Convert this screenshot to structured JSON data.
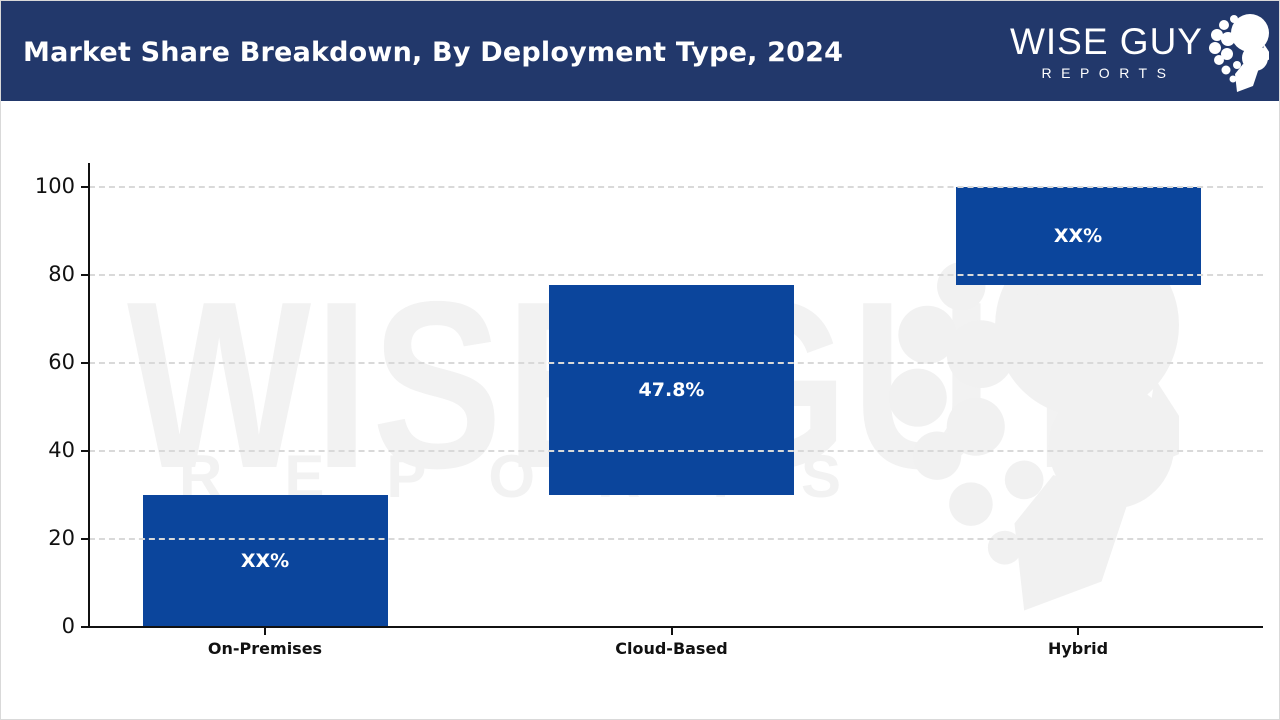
{
  "header": {
    "title": "Market Share Breakdown, By Deployment Type, 2024",
    "background": "#22386B",
    "logo": {
      "line1": "WISE GUY",
      "line2": "REPORTS",
      "icon": "head-profile-dots-icon"
    }
  },
  "watermark": {
    "line1": "WISE GUY",
    "line2": "REPORTS"
  },
  "chart_data": {
    "type": "bar",
    "subtype": "floating-stacked-percentage",
    "title": "Market Share Breakdown, By Deployment Type, 2024",
    "categories": [
      "On-Premises",
      "Cloud-Based",
      "Hybrid"
    ],
    "segments": [
      {
        "category": "On-Premises",
        "start": 0,
        "end": 29.9,
        "label": "XX%"
      },
      {
        "category": "Cloud-Based",
        "start": 29.9,
        "end": 77.7,
        "label": "47.8%"
      },
      {
        "category": "Hybrid",
        "start": 77.7,
        "end": 100,
        "label": "XX%"
      }
    ],
    "xlabel": "",
    "ylabel": "",
    "ylim": [
      0,
      100
    ],
    "yticks": [
      0,
      20,
      40,
      60,
      80,
      100
    ],
    "grid": "dashed-horizontal",
    "legend": "none",
    "bar_color": "#0B459C",
    "bar_label_color": "#ffffff",
    "axis_color": "#111111",
    "gridline_color": "#d9d9d9"
  }
}
